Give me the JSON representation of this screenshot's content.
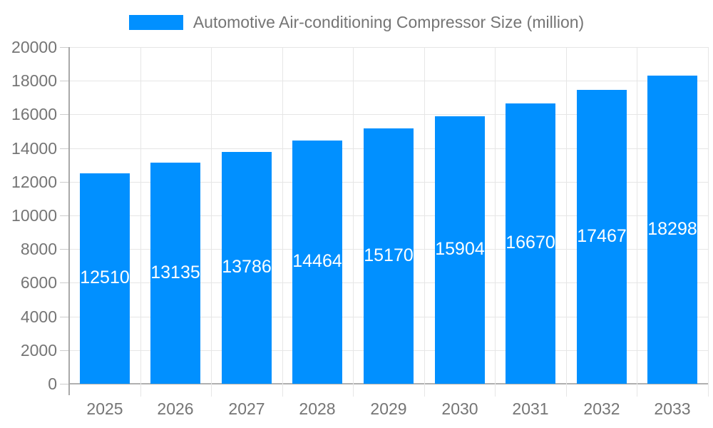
{
  "chart_data": {
    "type": "bar",
    "title": "Automotive Air-conditioning Compressor Size (million)",
    "categories": [
      "2025",
      "2026",
      "2027",
      "2028",
      "2029",
      "2030",
      "2031",
      "2032",
      "2033"
    ],
    "values": [
      12510,
      13135,
      13786,
      14464,
      15170,
      15904,
      16670,
      17467,
      18298
    ],
    "xlabel": "",
    "ylabel": "",
    "ylim": [
      0,
      20000
    ],
    "y_ticks": [
      0,
      2000,
      4000,
      6000,
      8000,
      10000,
      12000,
      14000,
      16000,
      18000,
      20000
    ],
    "grid": true,
    "legend_position": "top",
    "value_labels_inside_bars": true,
    "colors": {
      "bar": "#0190ff",
      "value_label": "#ffffff",
      "axis_text": "#757575",
      "gridline": "#e6e6e6",
      "axis_line": "#b0b0b0",
      "tick_dash": "#cccccc",
      "background": "#ffffff"
    }
  }
}
